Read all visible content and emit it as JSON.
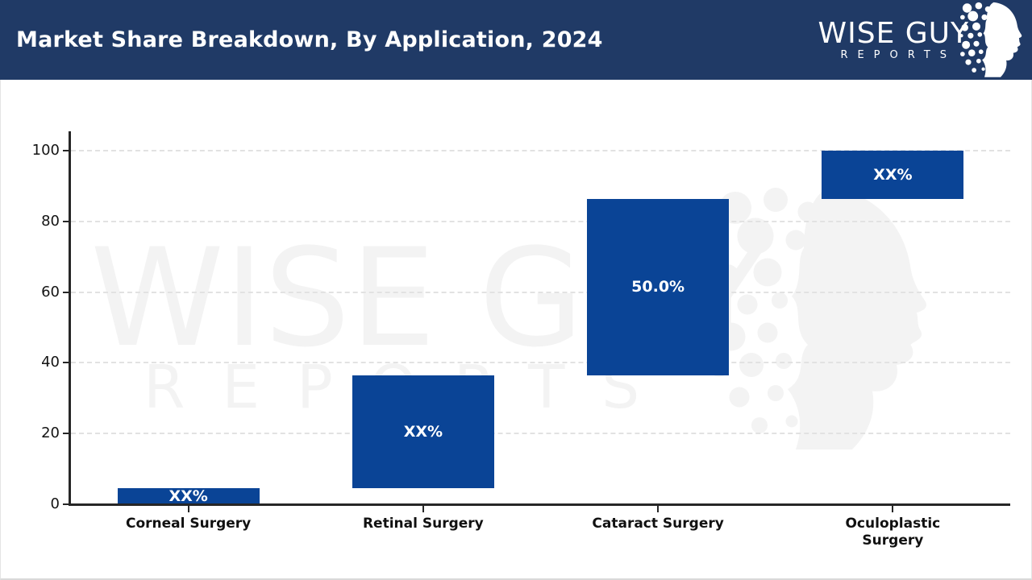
{
  "header": {
    "title": "Market Share Breakdown, By Application, 2024",
    "logo": {
      "line1": "WISE GUY",
      "line2": "REPORTS"
    }
  },
  "watermark": {
    "line1": "WISE GUY",
    "line2": "REPORTS"
  },
  "chart_data": {
    "type": "bar",
    "subtype": "floating-waterfall",
    "title": "Market Share Breakdown, By Application, 2024",
    "categories": [
      "Corneal Surgery",
      "Retinal Surgery",
      "Cataract Surgery",
      "Oculoplastic Surgery"
    ],
    "series": [
      {
        "name": "Market Share",
        "segments": [
          {
            "category": "Corneal Surgery",
            "start": 0,
            "end": 4.5,
            "label": "XX%"
          },
          {
            "category": "Retinal Surgery",
            "start": 4.5,
            "end": 36.4,
            "label": "XX%"
          },
          {
            "category": "Cataract Surgery",
            "start": 36.4,
            "end": 86.4,
            "label": "50.0%"
          },
          {
            "category": "Oculoplastic Surgery",
            "start": 86.4,
            "end": 100,
            "label": "XX%"
          }
        ]
      }
    ],
    "xlabel": "",
    "ylabel": "",
    "yticks": [
      0,
      20,
      40,
      60,
      80,
      100
    ],
    "ylim": [
      0,
      105
    ],
    "legend": "none",
    "grid": "horizontal-dashed",
    "colors": {
      "bar": "#0a4496",
      "header_bg": "#203a66",
      "grid": "#e2e2e2",
      "axis": "#262626",
      "bar_label": "#ffffff",
      "watermark": "#f3f3f3"
    }
  }
}
